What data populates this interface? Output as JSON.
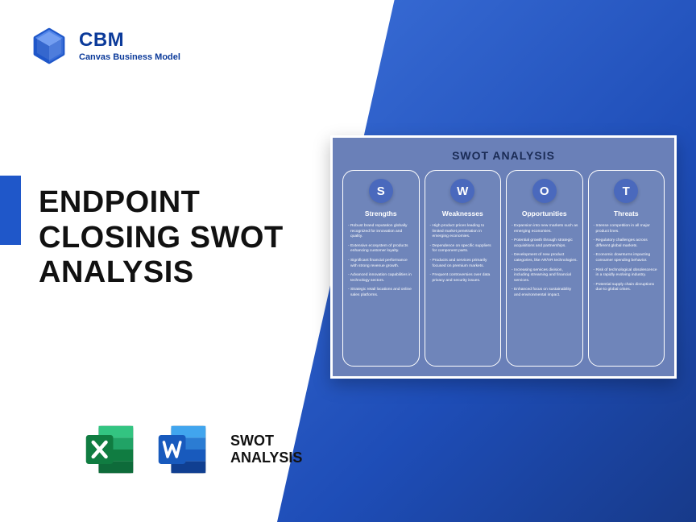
{
  "brand": {
    "title": "CBM",
    "subtitle": "Canvas Business Model",
    "logo_color_primary": "#1f57c9",
    "logo_color_secondary": "#5b8def"
  },
  "headline": "ENDPOINT CLOSING SWOT ANALYSIS",
  "icons_label_line1": "SWOT",
  "icons_label_line2": "ANALYSIS",
  "excel_icon": {
    "dark": "#107c41",
    "mid": "#21a366",
    "light": "#33c481",
    "sheet": "#ffffff"
  },
  "word_icon": {
    "dark": "#103f91",
    "mid": "#185abd",
    "light": "#2b7cd3",
    "sheet": "#ffffff"
  },
  "colors": {
    "blue_gradient_from": "#3b6fd8",
    "blue_gradient_to": "#173a8a",
    "left_accent": "#1f57c9",
    "swot_card_bg": "#6a80b8",
    "swot_badge_bg": "#4a69bd",
    "swot_title_color": "#1a2b55",
    "text_dark": "#111111"
  },
  "swot": {
    "title": "SWOT ANALYSIS",
    "columns": [
      {
        "letter": "S",
        "heading": "Strengths",
        "items": [
          "Robust brand reputation globally recognized for innovation and quality.",
          "Extensive ecosystem of products enhancing customer loyalty.",
          "Significant financial performance with strong revenue growth.",
          "Advanced innovation capabilities in technology sectors.",
          "Strategic retail locations and online sales platforms."
        ]
      },
      {
        "letter": "W",
        "heading": "Weaknesses",
        "items": [
          "High product prices leading to limited market penetration in emerging economies.",
          "Dependence on specific suppliers for component parts.",
          "Products and services primarily focused on premium markets.",
          "Frequent controversies over data privacy and security issues."
        ]
      },
      {
        "letter": "O",
        "heading": "Opportunities",
        "items": [
          "Expansion into new markets such as emerging economies.",
          "Potential growth through strategic acquisitions and partnerships.",
          "Development of new product categories, like AR/VR technologies.",
          "Increasing services division, including streaming and financial services.",
          "Enhanced focus on sustainability and environmental impact."
        ]
      },
      {
        "letter": "T",
        "heading": "Threats",
        "items": [
          "Intense competition in all major product lines.",
          "Regulatory challenges across different global markets.",
          "Economic downturns impacting consumer spending behavior.",
          "Risk of technological obsolescence in a rapidly evolving industry.",
          "Potential supply chain disruptions due to global crises."
        ]
      }
    ]
  }
}
